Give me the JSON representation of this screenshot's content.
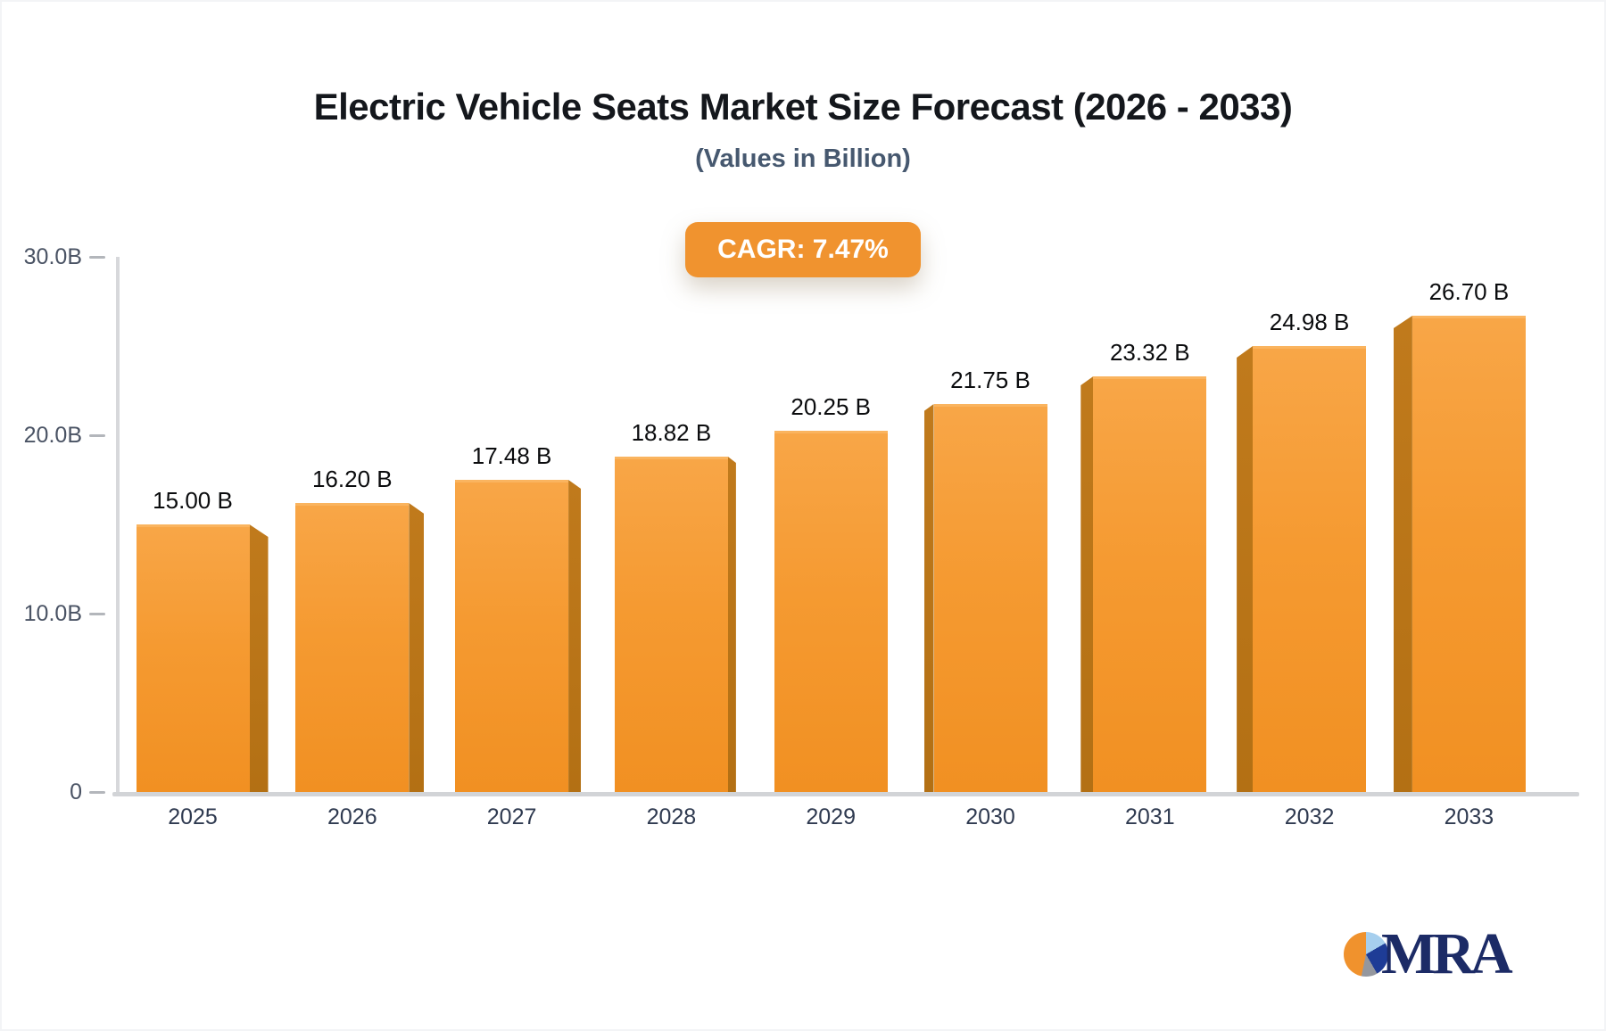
{
  "header": {
    "title": "Electric Vehicle Seats Market Size Forecast (2026 - 2033)",
    "subtitle": "(Values in Billion)",
    "cagr_badge": "CAGR: 7.47%"
  },
  "chart_data": {
    "type": "bar",
    "title": "Electric Vehicle Seats Market Size Forecast (2026 - 2033)",
    "subtitle": "(Values in Billion)",
    "annotation": "CAGR: 7.47%",
    "cagr_percent": 7.47,
    "categories": [
      "2025",
      "2026",
      "2027",
      "2028",
      "2029",
      "2030",
      "2031",
      "2032",
      "2033"
    ],
    "values": [
      15.0,
      16.2,
      17.48,
      18.82,
      20.25,
      21.75,
      23.32,
      24.98,
      26.7
    ],
    "value_labels": [
      "15.00 B",
      "16.20 B",
      "17.48 B",
      "18.82 B",
      "20.25 B",
      "21.75 B",
      "23.32 B",
      "24.98 B",
      "26.70 B"
    ],
    "unit": "B",
    "ylim": [
      0,
      30
    ],
    "yticks": [
      {
        "value": 0,
        "label": "0"
      },
      {
        "value": 10,
        "label": "10.0B"
      },
      {
        "value": 20,
        "label": "20.0B"
      },
      {
        "value": 30,
        "label": "30.0B"
      }
    ],
    "grid": false,
    "legend": false,
    "bar_style": "3d",
    "colors": {
      "bar_face_top": "#F8A647",
      "bar_face_bottom": "#F19022",
      "bar_side": "#B77317",
      "badge": "#F0932F",
      "axis": "#D5D7DA"
    }
  },
  "logo": {
    "text": "MRA",
    "pie_colors": {
      "orange": "#F0922D",
      "light_blue": "#A6CFEE",
      "navy": "#1E3C96",
      "gray": "#94979E"
    }
  }
}
